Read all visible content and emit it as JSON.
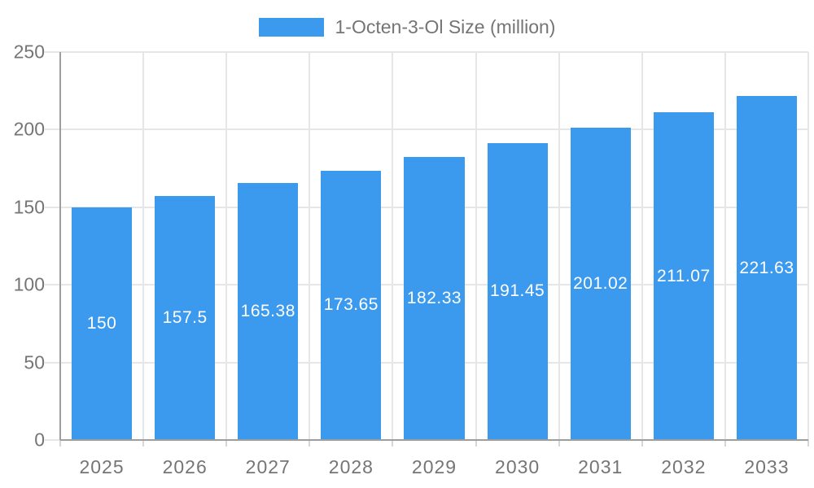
{
  "chart_data": {
    "type": "bar",
    "title": "",
    "legend": "1-Octen-3-Ol Size (million)",
    "legend_position": "top-center",
    "categories": [
      "2025",
      "2026",
      "2027",
      "2028",
      "2029",
      "2030",
      "2031",
      "2032",
      "2033"
    ],
    "series": [
      {
        "name": "1-Octen-3-Ol Size (million)",
        "values": [
          150,
          157.5,
          165.38,
          173.65,
          182.33,
          191.45,
          201.02,
          211.07,
          221.63
        ],
        "value_labels": [
          "150",
          "157.5",
          "165.38",
          "173.65",
          "182.33",
          "191.45",
          "201.02",
          "211.07",
          "221.63"
        ]
      }
    ],
    "xlabel": "",
    "ylabel": "",
    "ylim": [
      0,
      250
    ],
    "yticks": [
      0,
      50,
      100,
      150,
      200,
      250
    ],
    "ytick_labels": [
      "0",
      "50",
      "100",
      "150",
      "200",
      "250"
    ],
    "grid": "horizontal-and-vertical",
    "value_label_position": "inside-center",
    "bar_width_fraction": 0.725
  },
  "colors": {
    "accent": "#3b99ee",
    "grid": "#e6e6e6",
    "axis": "#9e9e9e",
    "tick": "#d6d6d6",
    "text": "#757575",
    "bar_label": "#ffffff",
    "background": "#ffffff"
  }
}
